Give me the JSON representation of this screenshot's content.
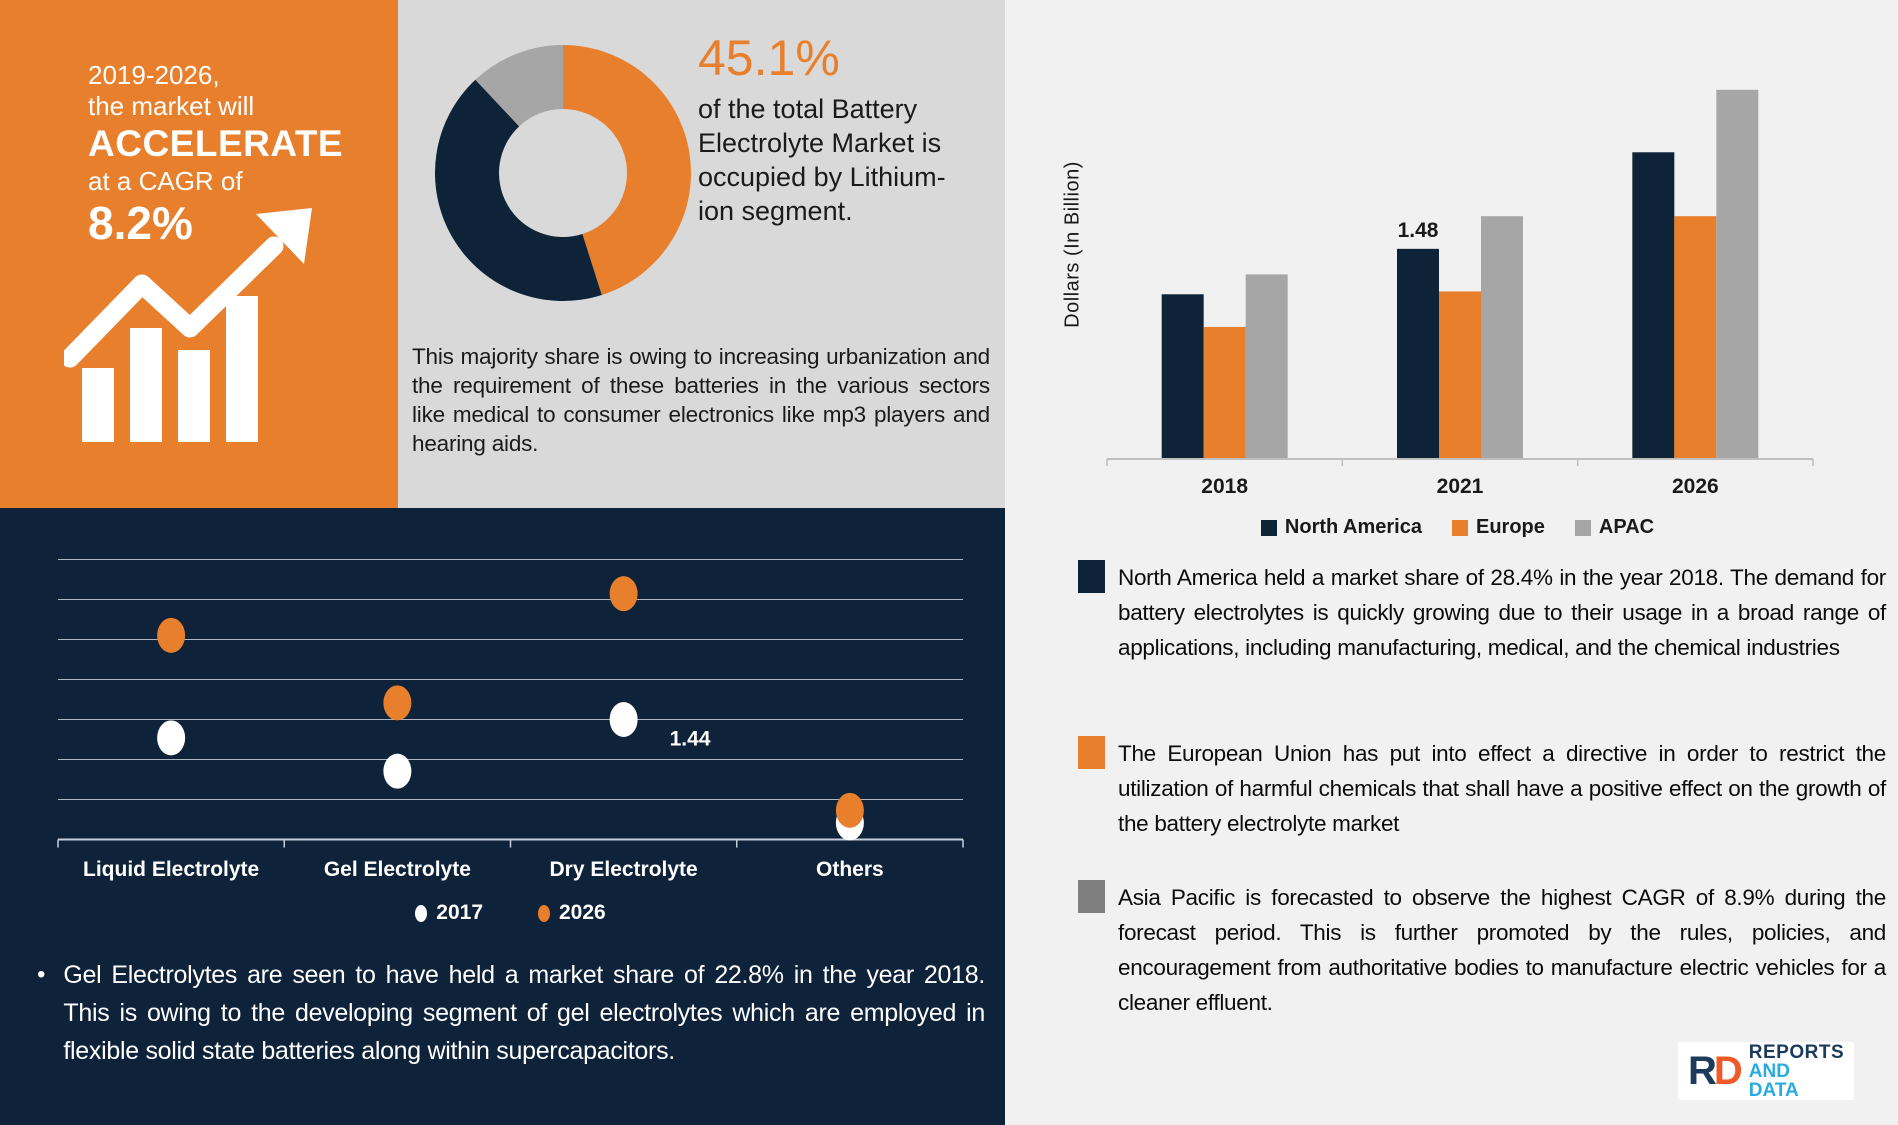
{
  "colors": {
    "orange": "#E87F2D",
    "navy": "#0E2338",
    "dark_panel_bg": "#0E2239",
    "gray_panel_bg": "#D9D9D9",
    "right_bg": "#F1F1F1",
    "bar_gray": "#A6A6A6",
    "bullet_gray": "#7F7F7F",
    "white": "#FFFFFF",
    "logo_navy": "#1B3A5C",
    "logo_orange": "#F05A28",
    "logo_lightblue": "#29ABE2"
  },
  "accelerate_panel": {
    "line1": "2019-2026,",
    "line2": "the market will",
    "line3": "ACCELERATE",
    "line4": "at a CAGR of",
    "line5": "8.2%"
  },
  "lithium_panel": {
    "headline_value": "45.1%",
    "headline_rest": "of the total Battery Electrolyte Market is occupied by Lithium-ion segment.",
    "paragraph": "This majority share is owing to increasing urbanization and the requirement of these batteries in the various sectors like medical to consumer electronics like mp3 players and hearing aids."
  },
  "electrolyte_panel": {
    "bullet": "Gel Electrolytes are seen to have held a market share of 22.8% in the year 2018. This is owing to the developing segment of gel electrolytes which are employed in flexible solid state batteries along within supercapacitors."
  },
  "region_section": {
    "bullets": [
      {
        "color": "#0E2338",
        "text": "North America held a market share of 28.4% in the year 2018. The demand for battery electrolytes is quickly growing due to their usage in a broad range of applications, including manufacturing, medical, and the chemical industries"
      },
      {
        "color": "#E87F2D",
        "text": "The European Union has put into effect a directive in order to restrict the utilization of harmful chemicals that shall have a positive effect on the growth of the battery electrolyte market"
      },
      {
        "color": "#7F7F7F",
        "text": "Asia Pacific is forecasted to observe the highest CAGR of 8.9% during the forecast period. This is further promoted by the rules, policies, and encouragement from authoritative bodies to manufacture electric vehicles for a cleaner effluent."
      }
    ]
  },
  "logo": {
    "monogram_r": "R",
    "monogram_d": "D",
    "line1": "REPORTS",
    "line2": "AND DATA"
  },
  "chart_data": [
    {
      "type": "pie",
      "variant": "donut",
      "labels": [
        "Lithium-ion",
        "unlabeled-navy-segment",
        "unlabeled-gray-segment"
      ],
      "values": [
        45.1,
        42.9,
        12.0
      ],
      "colors": [
        "#E87F2D",
        "#0E2338",
        "#A6A6A6"
      ],
      "start_angle_deg": 0,
      "direction": "clockwise",
      "callout": {
        "value": "45.1%",
        "label": "Lithium-ion"
      }
    },
    {
      "type": "bar",
      "categories": [
        "2018",
        "2021",
        "2026"
      ],
      "ylabel": "Dollars (In Billion)",
      "ylim": [
        0,
        2.8
      ],
      "grid": false,
      "legend_position": "bottom",
      "series": [
        {
          "name": "North America",
          "color": "#0E2338",
          "values": [
            1.16,
            1.48,
            2.16
          ]
        },
        {
          "name": "Europe",
          "color": "#E87F2D",
          "values": [
            0.93,
            1.18,
            1.71
          ]
        },
        {
          "name": "APAC",
          "color": "#A6A6A6",
          "values": [
            1.3,
            1.71,
            2.6
          ]
        }
      ],
      "data_labels": [
        {
          "series": "North America",
          "category": "2021",
          "text": "1.48"
        }
      ]
    },
    {
      "type": "scatter",
      "categories": [
        "Liquid Electrolyte",
        "Gel Electrolyte",
        "Dry Electrolyte",
        "Others"
      ],
      "ylim": [
        0,
        3.36
      ],
      "gridline_step": 0.48,
      "grid": true,
      "legend_position": "bottom",
      "series": [
        {
          "name": "2017",
          "color": "#FFFFFF",
          "values": [
            1.22,
            0.82,
            1.44,
            0.2
          ]
        },
        {
          "name": "2026",
          "color": "#E87F2D",
          "values": [
            2.45,
            1.64,
            2.95,
            0.35
          ]
        }
      ],
      "data_labels": [
        {
          "series": "2017",
          "category": "Dry Electrolyte",
          "text": "1.44"
        }
      ]
    }
  ]
}
